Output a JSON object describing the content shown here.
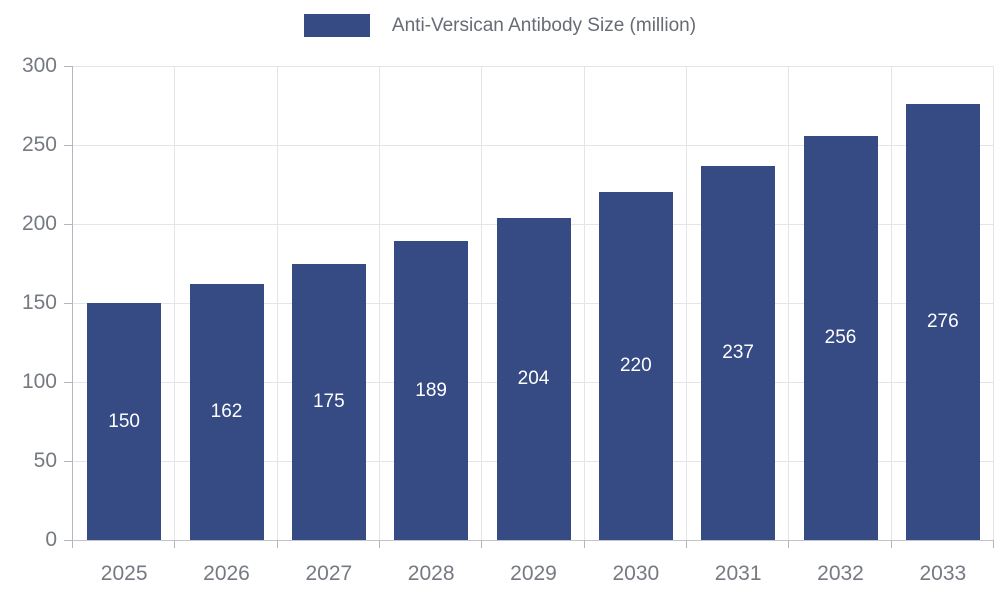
{
  "colors": {
    "bar": "#364a84",
    "grid": "#e3e5ea",
    "axis": "#b3b6bd",
    "tick_text": "#757a82",
    "legend_text": "#666b74",
    "value_text": "#ffffff",
    "background": "#ffffff"
  },
  "legend": {
    "label": "Anti-Versican Antibody Size (million)"
  },
  "chart_data": {
    "type": "bar",
    "title": "Anti-Versican Antibody Size (million)",
    "categories": [
      "2025",
      "2026",
      "2027",
      "2028",
      "2029",
      "2030",
      "2031",
      "2032",
      "2033"
    ],
    "values": [
      150,
      162,
      175,
      189,
      204,
      220,
      237,
      256,
      276
    ],
    "series": [
      {
        "name": "Anti-Versican Antibody Size (million)",
        "values": [
          150,
          162,
          175,
          189,
          204,
          220,
          237,
          256,
          276
        ]
      }
    ],
    "xlabel": "",
    "ylabel": "",
    "ylim": [
      0,
      300
    ],
    "ytick_step": 50,
    "ytick_labels": [
      "0",
      "50",
      "100",
      "150",
      "200",
      "250",
      "300"
    ],
    "grid": true,
    "legend_position": "top-center",
    "value_labels_inside_bars": true
  }
}
